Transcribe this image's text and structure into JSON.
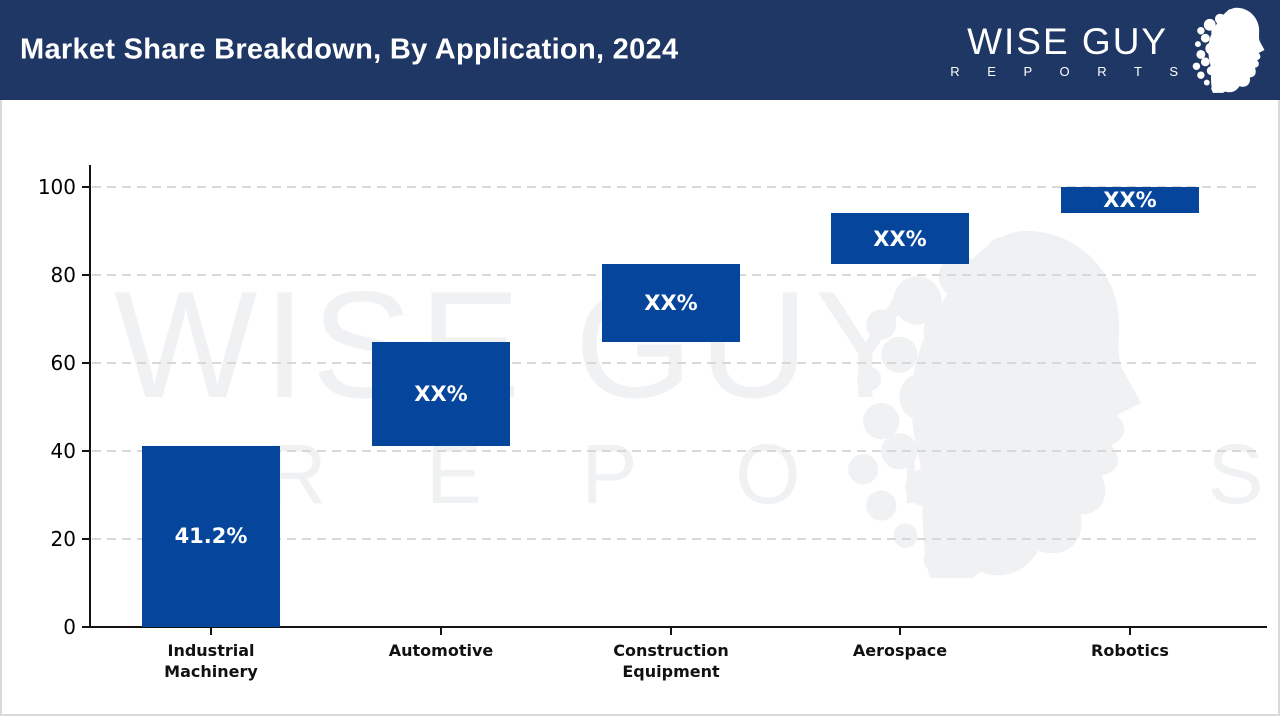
{
  "header": {
    "title": "Market Share Breakdown, By Application, 2024",
    "bg_color": "#1f3764",
    "brand": {
      "line1": "WISE GUY",
      "line2": "R E P O R T S"
    }
  },
  "watermark": {
    "line1": "WISE GUY",
    "line2": "R E P O R T S"
  },
  "colors": {
    "accent_blue": "#05459c",
    "header_navy": "#1f3764",
    "grid_gray": "#d8d8d8"
  },
  "chart_data": {
    "type": "bar",
    "subtype": "waterfall",
    "title": "Market Share Breakdown, By Application, 2024",
    "xlabel": "",
    "ylabel": "",
    "ylim": [
      0,
      105
    ],
    "grid": "horizontal-dashed",
    "legend": "none",
    "yticks": [
      0,
      20,
      40,
      60,
      80,
      100
    ],
    "categories": [
      "Industrial Machinery",
      "Automotive",
      "Construction Equipment",
      "Aerospace",
      "Robotics"
    ],
    "categories_display": [
      "Industrial\nMachinery",
      "Automotive",
      "Construction\nEquipment",
      "Aerospace",
      "Robotics"
    ],
    "segments": [
      {
        "category": "Industrial Machinery",
        "start": 0,
        "end": 41.2,
        "value": 41.2,
        "label": "41.2%"
      },
      {
        "category": "Automotive",
        "start": 41.2,
        "end": 64.7,
        "value": 23.5,
        "label": "XX%"
      },
      {
        "category": "Construction Equipment",
        "start": 64.7,
        "end": 82.5,
        "value": 17.8,
        "label": "XX%"
      },
      {
        "category": "Aerospace",
        "start": 82.5,
        "end": 94.0,
        "value": 11.5,
        "label": "XX%"
      },
      {
        "category": "Robotics",
        "start": 94.0,
        "end": 100.0,
        "value": 6.0,
        "label": "XX%"
      }
    ],
    "bar_color": "#05459c",
    "bar_label_color": "#ffffff"
  }
}
